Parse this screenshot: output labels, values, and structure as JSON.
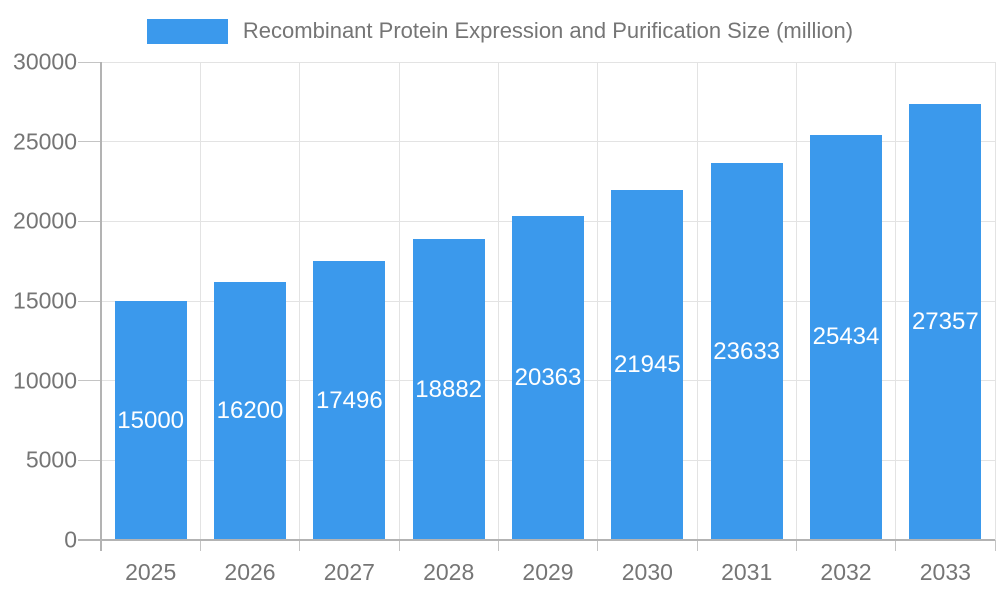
{
  "legend": {
    "label": "Recombinant Protein Expression and Purification Size (million)"
  },
  "chart_data": {
    "type": "bar",
    "title": "Recombinant Protein Expression and Purification Size (million)",
    "categories": [
      "2025",
      "2026",
      "2027",
      "2028",
      "2029",
      "2030",
      "2031",
      "2032",
      "2033"
    ],
    "values": [
      15000,
      16200,
      17496,
      18882,
      20363,
      21945,
      23633,
      25434,
      27357
    ],
    "series_name": "Recombinant Protein Expression and Purification Size (million)",
    "xlabel": "",
    "ylabel": "",
    "ylim": [
      0,
      30000
    ],
    "yticks": [
      0,
      5000,
      10000,
      15000,
      20000,
      25000,
      30000
    ],
    "grid": true,
    "legend_position": "top",
    "bar_label_position": "inside-center",
    "colors": {
      "bar": "#3b99ec",
      "bar_value_text": "#ffffff",
      "axis_text": "#757575",
      "legend_text": "#757575",
      "gridline": "#e3e3e3",
      "axis_line": "#b3b3b3",
      "tick": "#c4c4c4",
      "background": "#ffffff"
    }
  }
}
